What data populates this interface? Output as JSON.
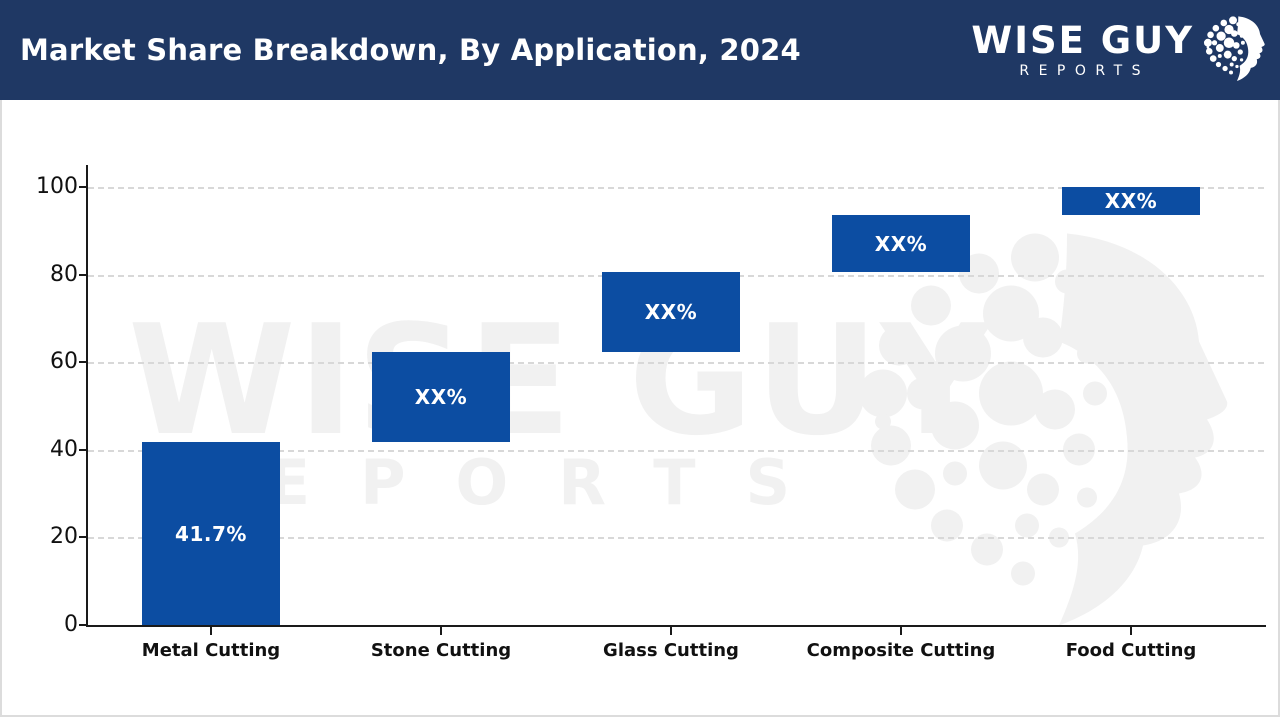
{
  "header": {
    "title": "Market Share Breakdown, By Application, 2024",
    "logo": {
      "primary": "WISE GUY",
      "secondary": "REPORTS",
      "icon": "dotted-head-profile"
    }
  },
  "watermark": {
    "line1": "WISE GUY",
    "line2": "REPORTS",
    "icon": "dotted-head-profile"
  },
  "chart_data": {
    "type": "bar",
    "subtype": "waterfall",
    "title": "Market Share Breakdown, By Application, 2024",
    "xlabel": "",
    "ylabel": "",
    "ylim": [
      0,
      105
    ],
    "y_ticks": [
      0,
      20,
      40,
      60,
      80,
      100
    ],
    "grid": "horizontal-dashed",
    "legend": "none",
    "categories": [
      "Metal Cutting",
      "Stone Cutting",
      "Glass Cutting",
      "Composite Cutting",
      "Food Cutting"
    ],
    "segments": [
      {
        "category": "Metal Cutting",
        "start": 0,
        "end": 41.7,
        "value": 41.7,
        "label": "41.7%"
      },
      {
        "category": "Stone Cutting",
        "start": 41.7,
        "end": 62.4,
        "value": 20.7,
        "label": "XX%"
      },
      {
        "category": "Glass Cutting",
        "start": 62.4,
        "end": 80.6,
        "value": 18.2,
        "label": "XX%"
      },
      {
        "category": "Composite Cutting",
        "start": 80.6,
        "end": 93.5,
        "value": 12.9,
        "label": "XX%"
      },
      {
        "category": "Food Cutting",
        "start": 93.5,
        "end": 100.0,
        "value": 6.5,
        "label": "XX%"
      }
    ]
  },
  "colors": {
    "header_bg": "#1f3864",
    "bar": "#0c4da2",
    "bar_label": "#ffffff",
    "grid": "#d8d8d8",
    "axis": "#1a1a1a",
    "watermark": "#f1f1f1",
    "background": "#ffffff",
    "frame_border": "#dcdcdc"
  }
}
